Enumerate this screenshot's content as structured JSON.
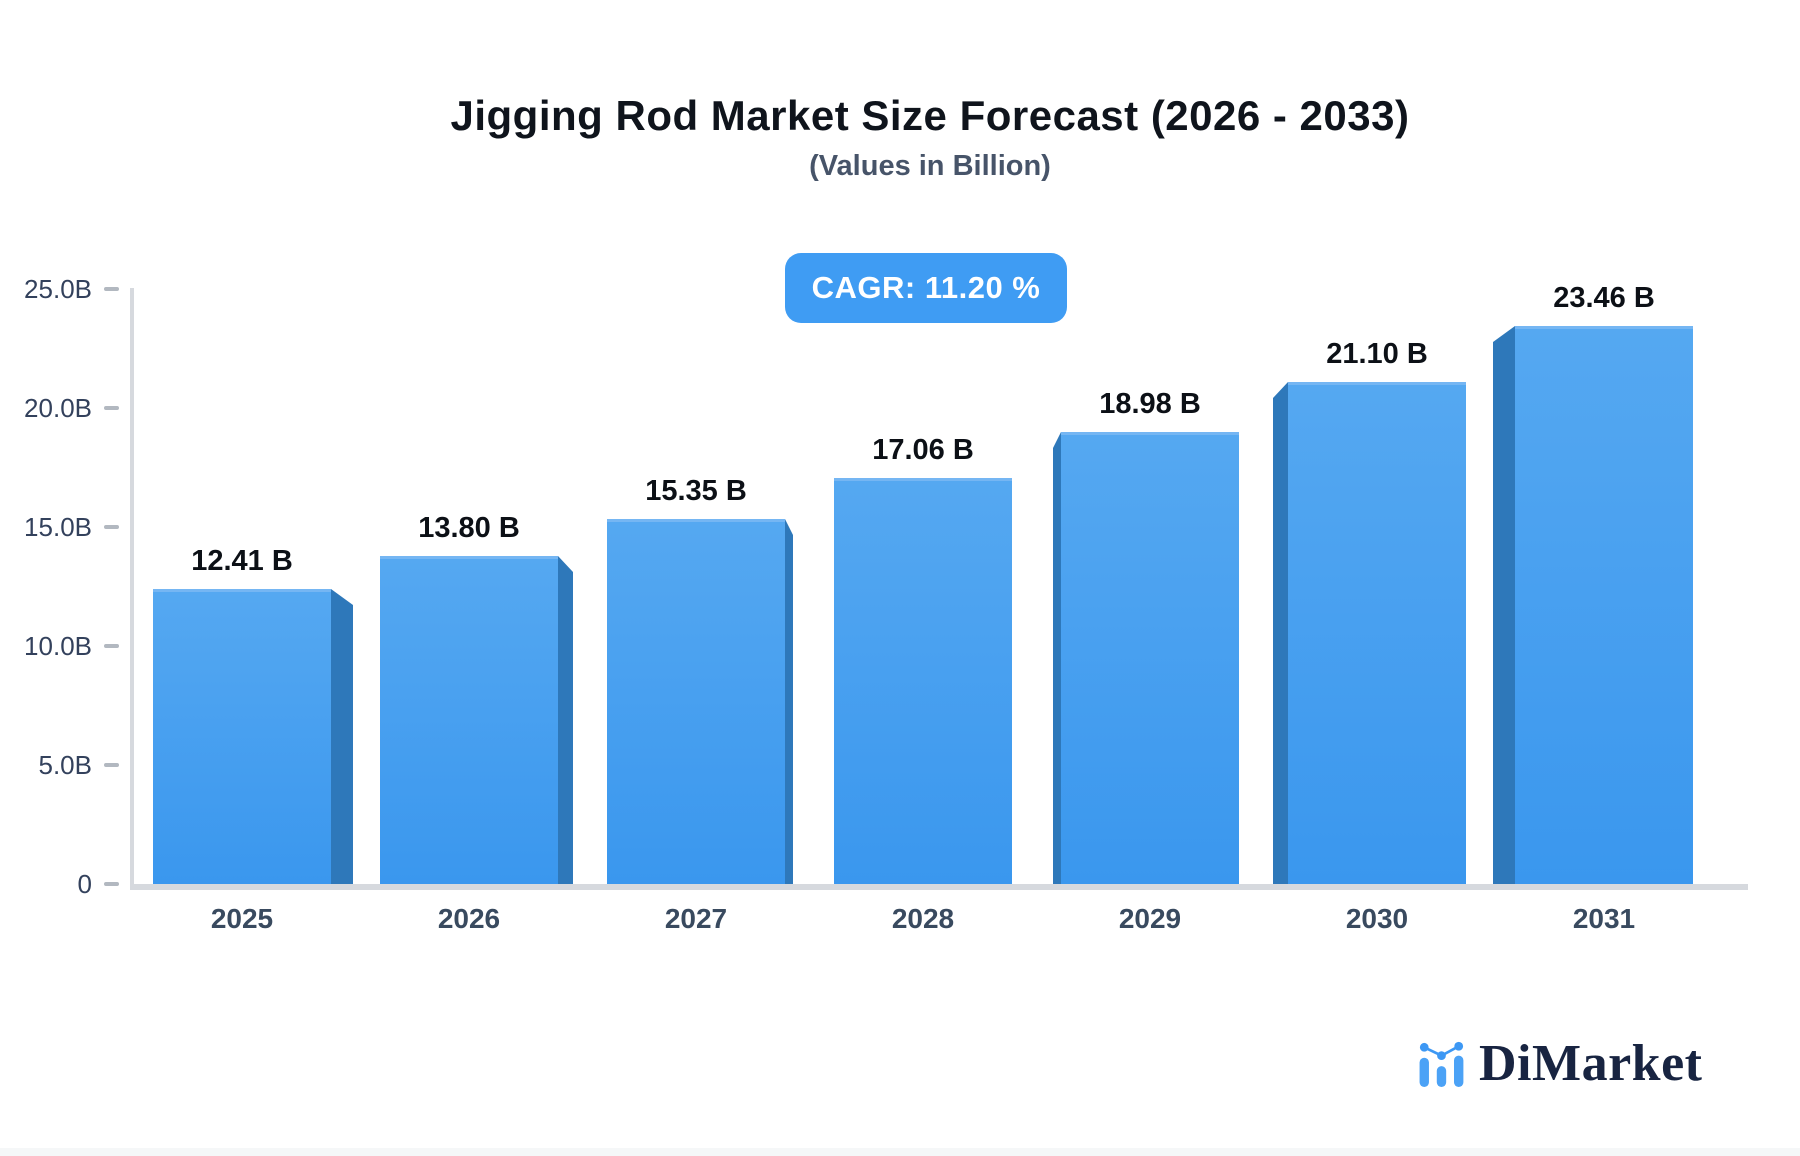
{
  "chart_data": {
    "type": "bar",
    "title": "Jigging Rod Market Size Forecast (2026 - 2033)",
    "subtitle": "(Values in Billion)",
    "annotation_badge": "CAGR: 11.20 %",
    "categories": [
      "2025",
      "2026",
      "2027",
      "2028",
      "2029",
      "2030",
      "2031"
    ],
    "values": [
      12.41,
      13.8,
      15.35,
      17.06,
      18.98,
      21.1,
      23.46
    ],
    "value_labels": [
      "12.41 B",
      "13.80 B",
      "15.35 B",
      "17.06 B",
      "18.98 B",
      "21.10 B",
      "23.46 B"
    ],
    "unit": "Billion",
    "y_ticks": [
      {
        "label": "25.0B",
        "value": 25
      },
      {
        "label": "20.0B",
        "value": 20
      },
      {
        "label": "15.0B",
        "value": 15
      },
      {
        "label": "10.0B",
        "value": 10
      },
      {
        "label": "5.0B",
        "value": 5
      },
      {
        "label": "0",
        "value": 0
      }
    ],
    "ylim": [
      0,
      25
    ],
    "grid": false,
    "legend": false,
    "colors": {
      "bar_face_top": "#55a8f1",
      "bar_face_bottom": "#3a97ee",
      "bar_side": "#2e78ba",
      "badge_background": "#3f9cf3",
      "badge_text": "#ffffff",
      "axis_line": "#d6d9de",
      "tick_dash": "#b2b8c0",
      "tick_text": "#33415c",
      "category_text": "#394a5f",
      "value_text": "#0c1016"
    }
  },
  "brand": {
    "name": "DiMarket",
    "icon": "bar-chart-logo-icon",
    "icon_bar_color": "#4ba2f6",
    "icon_dot_color": "#3d98f4",
    "text_color": "#182441"
  }
}
